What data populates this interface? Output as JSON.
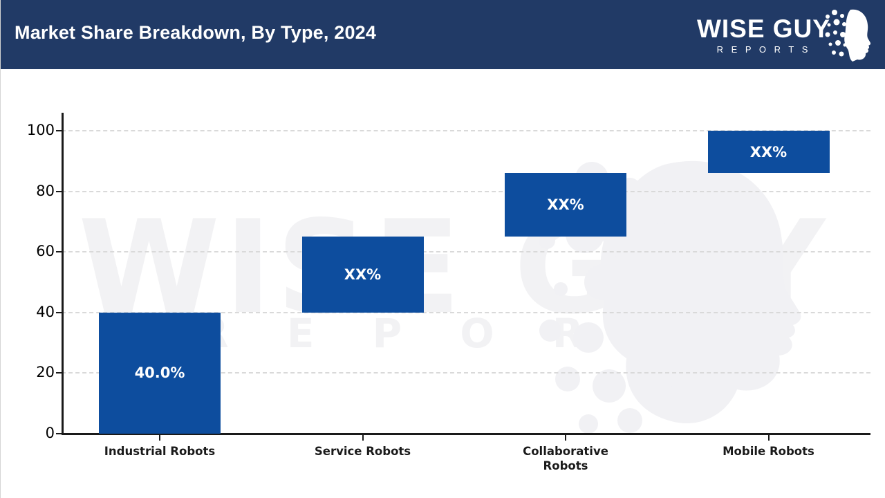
{
  "header": {
    "title": "Market Share Breakdown, By Type, 2024",
    "bg_color": "#213a66",
    "logo": {
      "line1": "WISE GUY",
      "line2": "R E P O R T S"
    }
  },
  "watermark": {
    "line1": "WISE GUY",
    "line2": "R E P O R T S"
  },
  "chart_data": {
    "type": "bar",
    "variant": "floating-stacked-segments",
    "title": "Market Share Breakdown, By Type, 2024",
    "categories": [
      "Industrial Robots",
      "Service Robots",
      "Collaborative Robots",
      "Mobile Robots"
    ],
    "category_lines": [
      [
        "Industrial Robots"
      ],
      [
        "Service Robots"
      ],
      [
        "Collaborative",
        "Robots"
      ],
      [
        "Mobile Robots"
      ]
    ],
    "segments": [
      {
        "category": "Industrial Robots",
        "from": 0,
        "to": 40,
        "label": "40.0%"
      },
      {
        "category": "Service Robots",
        "from": 40,
        "to": 65,
        "label": "XX%"
      },
      {
        "category": "Collaborative Robots",
        "from": 65,
        "to": 86,
        "label": "XX%"
      },
      {
        "category": "Mobile Robots",
        "from": 86,
        "to": 100,
        "label": "XX%"
      }
    ],
    "yticks": [
      0,
      20,
      40,
      60,
      80,
      100
    ],
    "ylim": [
      0,
      106
    ],
    "grid": "horizontal-dashed",
    "legend": "none",
    "bar_color": "#0d4d9e",
    "bar_label_color": "#ffffff",
    "axis_color": "#1a1a1a"
  }
}
